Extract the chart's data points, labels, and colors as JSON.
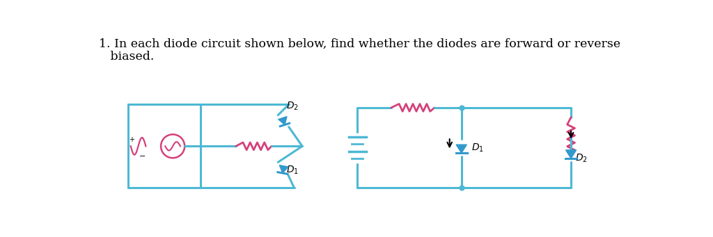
{
  "bg_color": "#ffffff",
  "wire_color": "#4db8d4",
  "resistor_color": "#d4407a",
  "diode_color": "#3399cc",
  "text_color": "#000000",
  "title_line1": "1. In each diode circuit shown below, find whether the diodes are forward or reverse",
  "title_line2": "   biased.",
  "title_fontsize": 12.5,
  "label_fontsize": 10
}
